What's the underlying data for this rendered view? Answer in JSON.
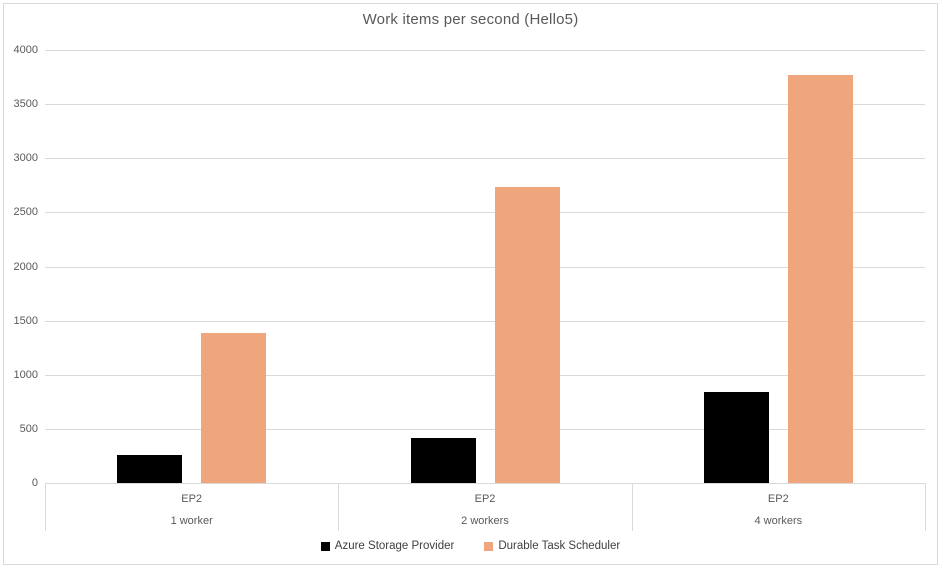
{
  "title": "Work items per second (Hello5)",
  "chart_data": {
    "type": "bar",
    "title": "Work items per second (Hello5)",
    "categories": [
      {
        "group": "EP2",
        "sub": "1 worker"
      },
      {
        "group": "EP2",
        "sub": "2 workers"
      },
      {
        "group": "EP2",
        "sub": "4 workers"
      }
    ],
    "series": [
      {
        "name": "Azure Storage Provider",
        "color": "#000000",
        "values": [
          260,
          420,
          840
        ]
      },
      {
        "name": "Durable Task Scheduler",
        "color": "#f0a67d",
        "values": [
          1390,
          2730,
          3770
        ]
      }
    ],
    "ylabel": "",
    "xlabel": "",
    "ylim": [
      0,
      4000
    ],
    "ytick_step": 500,
    "grid": true,
    "legend_position": "bottom"
  },
  "colors": {
    "grid": "#d9d9d9",
    "text": "#595959",
    "legend_text": "#404040",
    "frame": "#d8d8d8"
  }
}
